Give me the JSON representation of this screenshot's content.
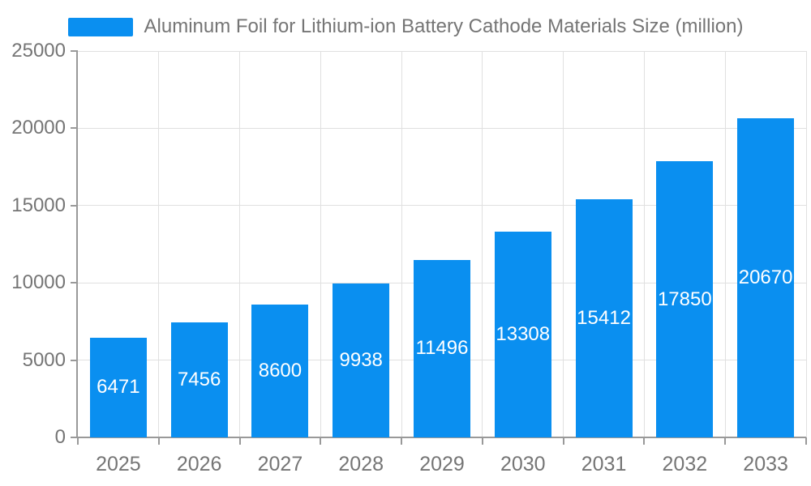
{
  "chart_data": {
    "type": "bar",
    "title": "Aluminum Foil for Lithium-ion Battery Cathode Materials Size (million)",
    "legend": [
      "Aluminum Foil for Lithium-ion Battery Cathode Materials Size (million)"
    ],
    "legend_position": "top-center",
    "categories": [
      "2025",
      "2026",
      "2027",
      "2028",
      "2029",
      "2030",
      "2031",
      "2032",
      "2033"
    ],
    "series": [
      {
        "name": "Aluminum Foil for Lithium-ion Battery Cathode Materials Size (million)",
        "values": [
          6471,
          7456,
          8600,
          9938,
          11496,
          13308,
          15412,
          17850,
          20670
        ]
      }
    ],
    "bar_value_labels_visible": true,
    "bar_value_label_position": "inside-center",
    "xlabel": "",
    "ylabel": "",
    "ylim": [
      0,
      25000
    ],
    "yticks": [
      0,
      5000,
      10000,
      15000,
      20000,
      25000
    ],
    "grid": true,
    "colors": {
      "bar": "#0a8ff0",
      "grid": "#e0e0e0",
      "axis": "#999999",
      "tick_label": "#757575",
      "title": "#757575",
      "bar_value_label": "#ffffff",
      "background": "#ffffff"
    }
  }
}
